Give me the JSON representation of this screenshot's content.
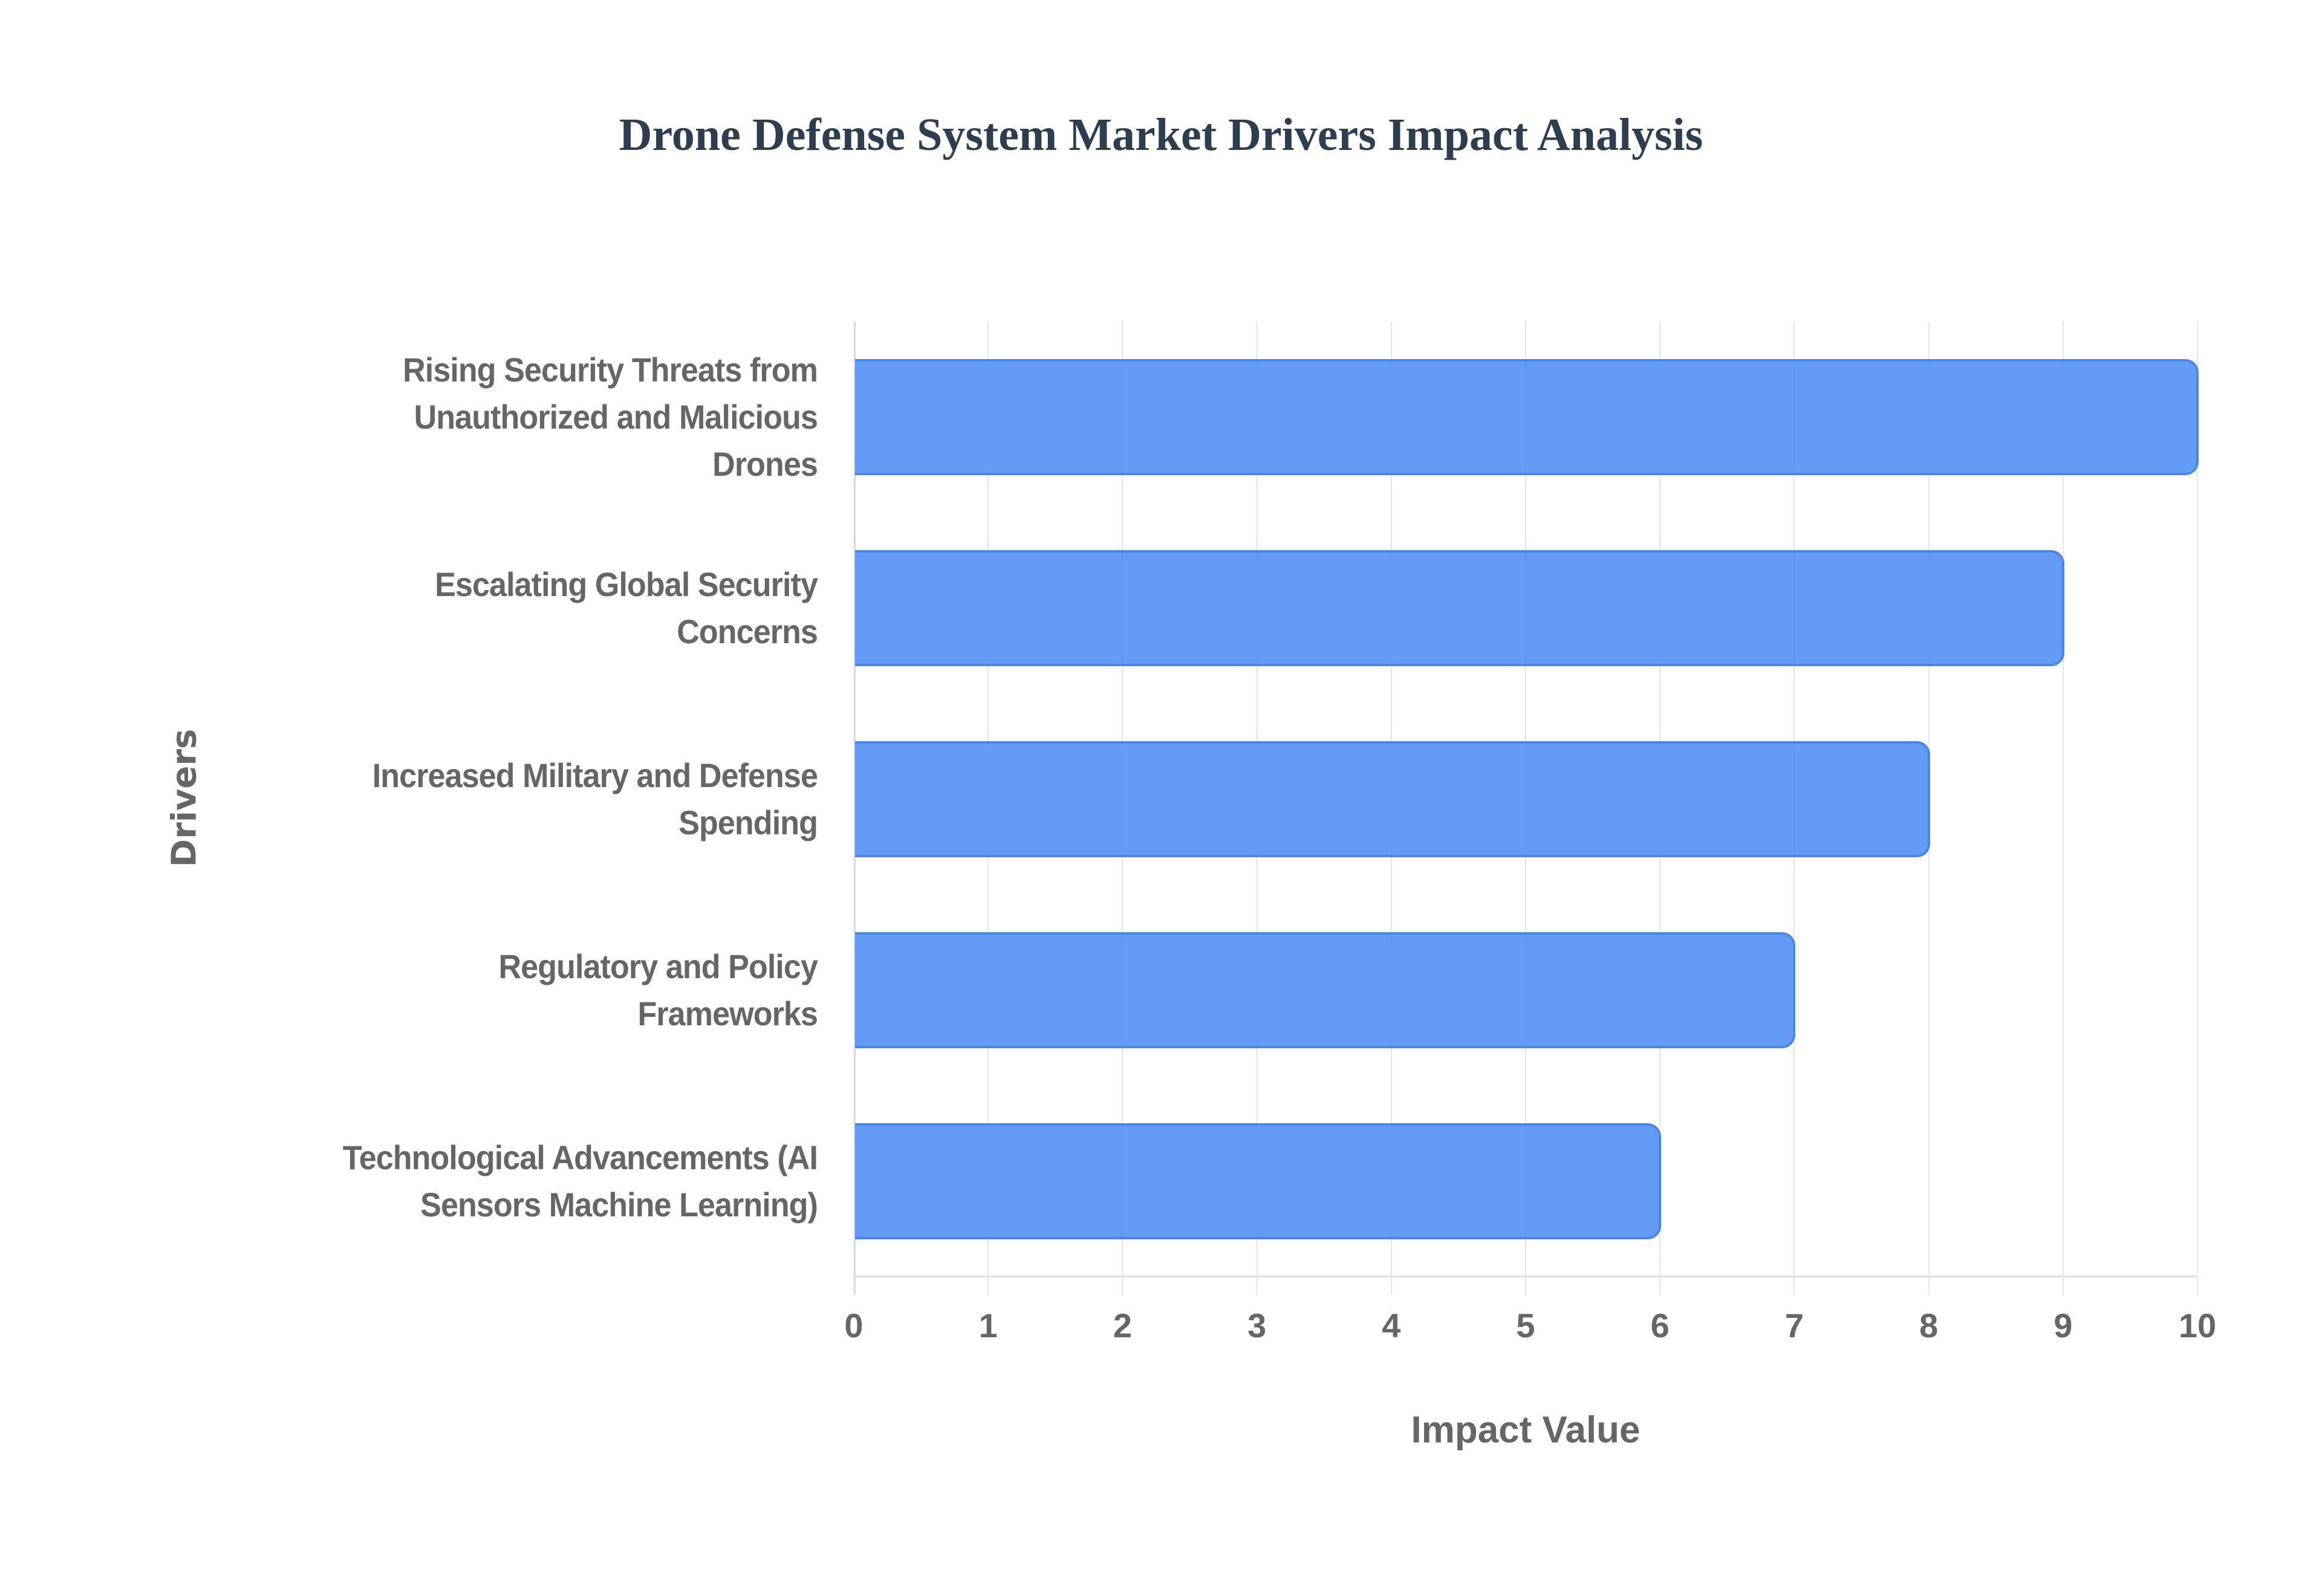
{
  "chart_data": {
    "type": "bar",
    "orientation": "horizontal",
    "title": "Drone Defense System Market Drivers Impact Analysis",
    "xlabel": "Impact Value",
    "ylabel": "Drivers",
    "xlim": [
      0,
      10
    ],
    "x_ticks": [
      "0",
      "1",
      "2",
      "3",
      "4",
      "5",
      "6",
      "7",
      "8",
      "9",
      "10"
    ],
    "grid": true,
    "legend": null,
    "bar_color": "#4285f4",
    "categories": [
      "Rising Security Threats from Unauthorized and Malicious Drones",
      "Escalating Global Security Concerns",
      "Increased Military and Defense Spending",
      "Regulatory and Policy Frameworks",
      "Technological Advancements (AI Sensors Machine Learning)"
    ],
    "values": [
      10,
      9,
      8,
      7,
      6
    ]
  },
  "labels": [
    {
      "lines": [
        "Rising Security Threats from",
        "Unauthorized and Malicious",
        "Drones"
      ]
    },
    {
      "lines": [
        "Escalating Global Security",
        "Concerns"
      ]
    },
    {
      "lines": [
        "Increased Military and Defense",
        "Spending"
      ]
    },
    {
      "lines": [
        "Regulatory and Policy",
        "Frameworks"
      ]
    },
    {
      "lines": [
        "Technological Advancements (AI",
        "Sensors Machine Learning)"
      ]
    }
  ]
}
